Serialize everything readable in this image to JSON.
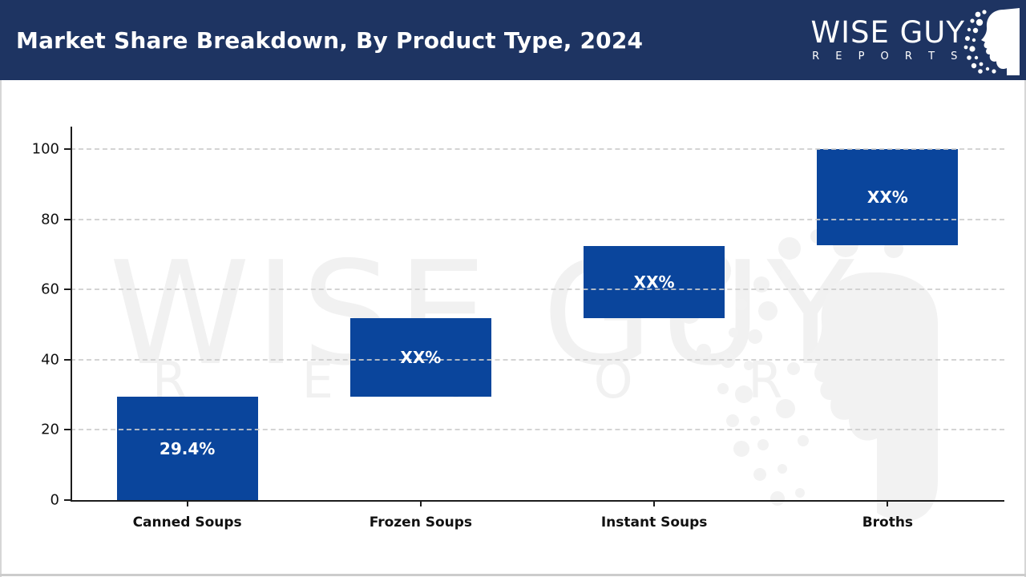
{
  "header": {
    "title": "Market Share Breakdown, By Product Type, 2024",
    "logo": {
      "line1": "WISE GUY",
      "line2": "R E P O R T S"
    }
  },
  "watermark": {
    "line1": "WISE GUY",
    "line2": "R E P O R T S"
  },
  "colors": {
    "header_bg": "#1e3462",
    "bar": "#0a459c",
    "grid": "#d8d8d8",
    "axis": "#1c1c1c",
    "watermark": "#f1f1f1"
  },
  "chart_data": {
    "type": "bar",
    "variant": "waterfall-floating-bars",
    "title": "Market Share Breakdown, By Product Type, 2024",
    "categories": [
      "Canned Soups",
      "Frozen Soups",
      "Instant Soups",
      "Broths"
    ],
    "segments": [
      {
        "category": "Canned Soups",
        "start": 0,
        "end": 29.4,
        "label": "29.4%"
      },
      {
        "category": "Frozen Soups",
        "start": 29.4,
        "end": 51.8,
        "label": "XX%"
      },
      {
        "category": "Instant Soups",
        "start": 51.8,
        "end": 72.3,
        "label": "XX%"
      },
      {
        "category": "Broths",
        "start": 72.5,
        "end": 100,
        "label": "XX%"
      }
    ],
    "xlabel": "",
    "ylabel": "",
    "ylim": [
      0,
      105
    ],
    "yticks": [
      0,
      20,
      40,
      60,
      80,
      100
    ],
    "grid": "horizontal-dashed-over-bars",
    "legend": null,
    "bar_color": "#0a459c"
  }
}
